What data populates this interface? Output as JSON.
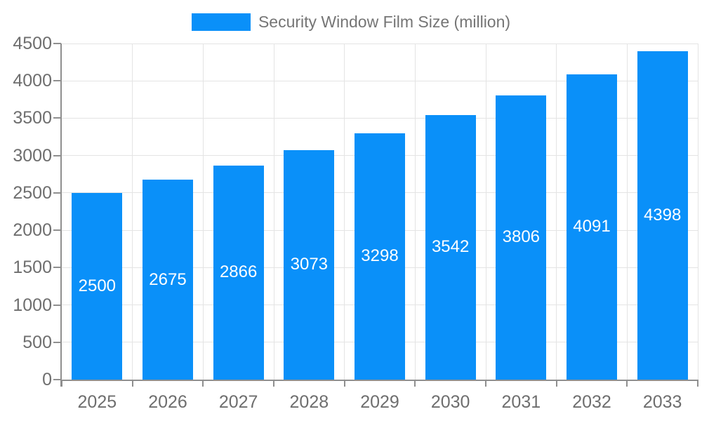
{
  "legend": {
    "label": "Security Window Film Size (million)"
  },
  "colors": {
    "bar": "#0A90F9",
    "grid": "#E4E4E4",
    "axis": "#8F8F8F",
    "axis_text": "#6E6E6E",
    "legend_text": "#757575",
    "bar_label_text": "#FFFFFF",
    "background": "#FFFFFF"
  },
  "chart_data": {
    "type": "bar",
    "title": "Security Window Film Size (million)",
    "series_name": "Security Window Film Size (million)",
    "categories": [
      "2025",
      "2026",
      "2027",
      "2028",
      "2029",
      "2030",
      "2031",
      "2032",
      "2033"
    ],
    "values": [
      2500,
      2675,
      2866,
      3073,
      3298,
      3542,
      3806,
      4091,
      4398
    ],
    "xlabel": "",
    "ylabel": "",
    "ylim": [
      0,
      4500
    ],
    "ytick_step": 500,
    "y_ticks": [
      0,
      500,
      1000,
      1500,
      2000,
      2500,
      3000,
      3500,
      4000,
      4500
    ],
    "grid": true,
    "grid_horizontal": true,
    "grid_vertical": true,
    "legend_position": "top-center",
    "value_labels": "inside-center"
  }
}
